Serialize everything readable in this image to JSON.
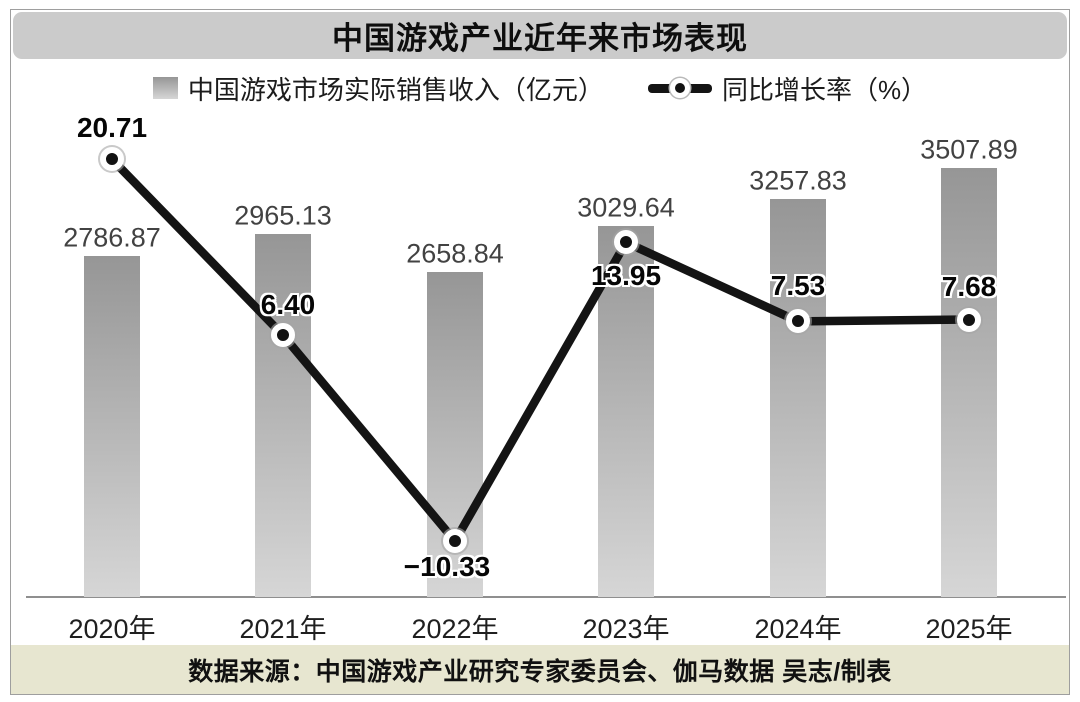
{
  "title": "中国游戏产业近年来市场表现",
  "legend": {
    "bar_label": "中国游戏市场实际销售收入（亿元）",
    "line_label": "同比增长率（%）"
  },
  "footer_text": "数据来源：中国游戏产业研究专家委员会、伽马数据 吴志/制表",
  "colors": {
    "banner_bg": "#cbcbcb",
    "bar_top": "#969696",
    "bar_bottom": "#d6d6d6",
    "line": "#141414",
    "marker_core": "#121212",
    "axis": "#8f8f8f",
    "footer_bg": "#e7e6d0",
    "frame_border": "#9e9e9e"
  },
  "chart_data": {
    "type": "bar",
    "title": "中国游戏产业近年来市场表现",
    "categories": [
      "2020年",
      "2021年",
      "2022年",
      "2023年",
      "2024年",
      "2025年"
    ],
    "series": [
      {
        "name": "中国游戏市场实际销售收入（亿元）",
        "type": "bar",
        "values": [
          2786.87,
          2965.13,
          2658.84,
          3029.64,
          3257.83,
          3507.89
        ],
        "labels": [
          "2786.87",
          "2965.13",
          "2658.84",
          "3029.64",
          "3257.83",
          "3507.89"
        ]
      },
      {
        "name": "同比增长率（%）",
        "type": "line",
        "values": [
          20.71,
          6.4,
          -10.33,
          13.95,
          7.53,
          7.68
        ],
        "labels": [
          "20.71",
          "6.40",
          "−10.33",
          "13.95",
          "7.53",
          "7.68"
        ]
      }
    ],
    "bar_axis": {
      "label": "亿元",
      "range": [
        0,
        3650
      ],
      "gridlines": false
    },
    "line_axis": {
      "label": "%",
      "range": [
        -15,
        25
      ],
      "gridlines": false
    },
    "legend_position": "top",
    "source": "数据来源：中国游戏产业研究专家委员会、伽马数据 吴志/制表"
  }
}
